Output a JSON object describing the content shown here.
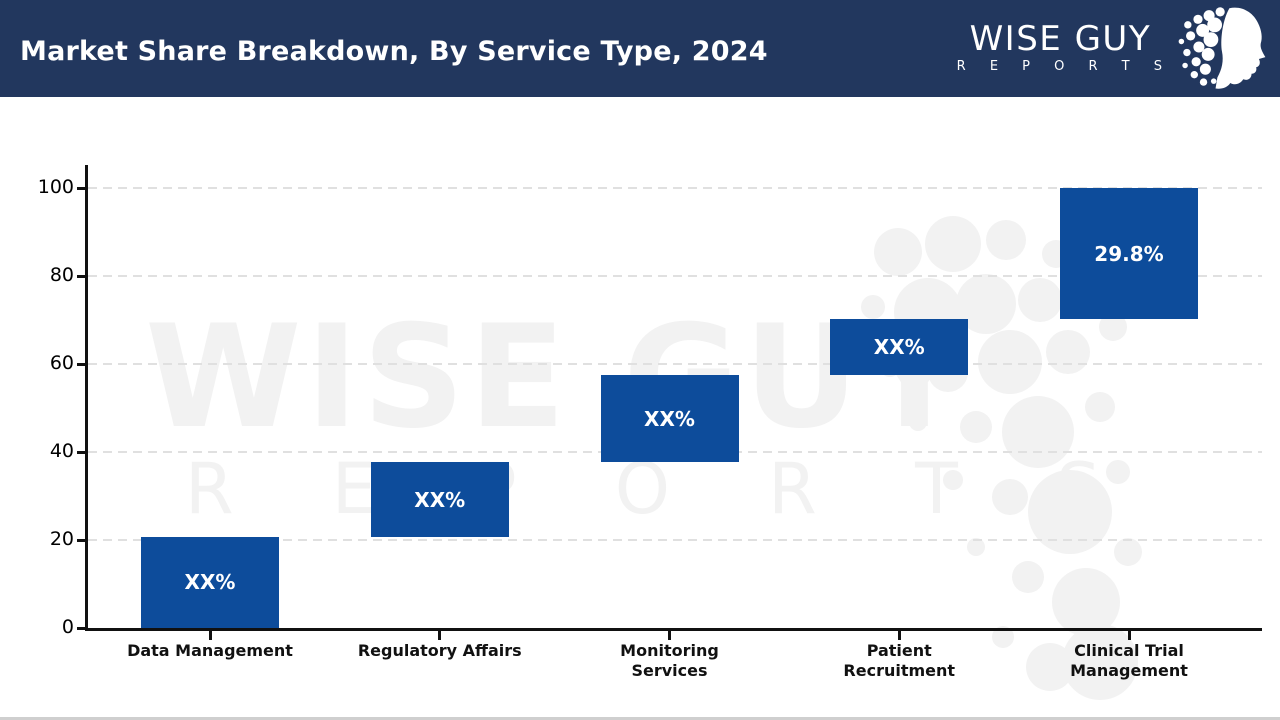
{
  "header": {
    "title": "Market Share Breakdown, By Service Type, 2024",
    "logo": {
      "wordmark": "WISE GUY",
      "subtitle": "R E P O R T S"
    }
  },
  "watermark": {
    "line1": "WISE GUY",
    "line2": "R E P O R T S"
  },
  "colors": {
    "header_bg": "#22375e",
    "bar": "#0d4c9b",
    "bar_label": "#ffffff",
    "grid": "#e0e0e0",
    "axis": "#111111",
    "watermark": "#f2f2f2",
    "bottom_rule": "#cfcfcf"
  },
  "chart_data": {
    "type": "bar",
    "subtype": "waterfall",
    "title": "Market Share Breakdown, By Service Type, 2024",
    "categories": [
      "Data Management",
      "Regulatory Affairs",
      "Monitoring Services",
      "Patient Recruitment",
      "Clinical Trial Management"
    ],
    "tick_labels": [
      "Data Management",
      "Regulatory Affairs",
      "Monitoring\nServices",
      "Patient\nRecruitment",
      "Clinical Trial\nManagement"
    ],
    "segments": [
      {
        "category": "Data Management",
        "start": 0,
        "end": 20.7,
        "value": 20.7,
        "value_label": "XX%"
      },
      {
        "category": "Regulatory Affairs",
        "start": 20.7,
        "end": 37.7,
        "value": 17.0,
        "value_label": "XX%"
      },
      {
        "category": "Monitoring Services",
        "start": 37.7,
        "end": 57.5,
        "value": 19.8,
        "value_label": "XX%"
      },
      {
        "category": "Patient Recruitment",
        "start": 57.5,
        "end": 70.2,
        "value": 12.7,
        "value_label": "XX%"
      },
      {
        "category": "Clinical Trial Management",
        "start": 70.2,
        "end": 100,
        "value": 29.8,
        "value_label": "29.8%"
      }
    ],
    "yticks": [
      0,
      20,
      40,
      60,
      80,
      100
    ],
    "ylim": [
      0,
      105
    ],
    "xlabel": "",
    "ylabel": "",
    "grid": "horizontal-dashed",
    "legend": null
  }
}
